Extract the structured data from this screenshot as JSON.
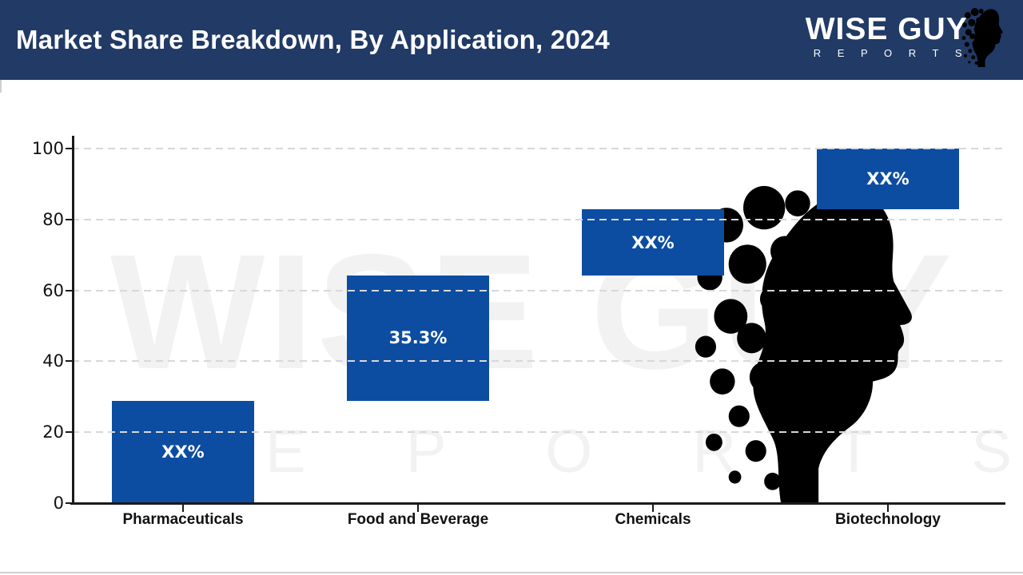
{
  "header": {
    "title": "Market Share Breakdown, By Application, 2024",
    "logo": {
      "wordmark": "WISE GUY",
      "subtitle": "R E P O R T S"
    }
  },
  "watermark": {
    "line1": "WISE GUY",
    "line2": "R E P O R T S"
  },
  "colors": {
    "header_bg": "#213A66",
    "bar": "#0C4DA2",
    "bar_label_text": "#FFFFFF",
    "gridline": "#D8D8D8",
    "axis": "#1A1A1A",
    "tick_label_text": "#111111",
    "watermark": "#F2F2F2"
  },
  "chart_data": {
    "type": "bar",
    "subtype": "waterfall",
    "title": "Market Share Breakdown, By Application, 2024",
    "xlabel": "",
    "ylabel": "",
    "ylim": [
      0,
      100
    ],
    "yticks": [
      0,
      20,
      40,
      60,
      80,
      100
    ],
    "grid": "horizontal-dashed",
    "legend": "none",
    "categories": [
      "Pharmaceuticals",
      "Food and Beverage",
      "Chemicals",
      "Biotechnology"
    ],
    "segments": [
      {
        "category": "Pharmaceuticals",
        "start": 0,
        "end": 28.9,
        "value": 28.9,
        "label": "XX%"
      },
      {
        "category": "Food and Beverage",
        "start": 28.9,
        "end": 64.2,
        "value": 35.3,
        "label": "35.3%"
      },
      {
        "category": "Chemicals",
        "start": 64.2,
        "end": 82.8,
        "value": 18.6,
        "label": "XX%"
      },
      {
        "category": "Biotechnology",
        "start": 82.8,
        "end": 100,
        "value": 17.2,
        "label": "XX%"
      }
    ]
  }
}
